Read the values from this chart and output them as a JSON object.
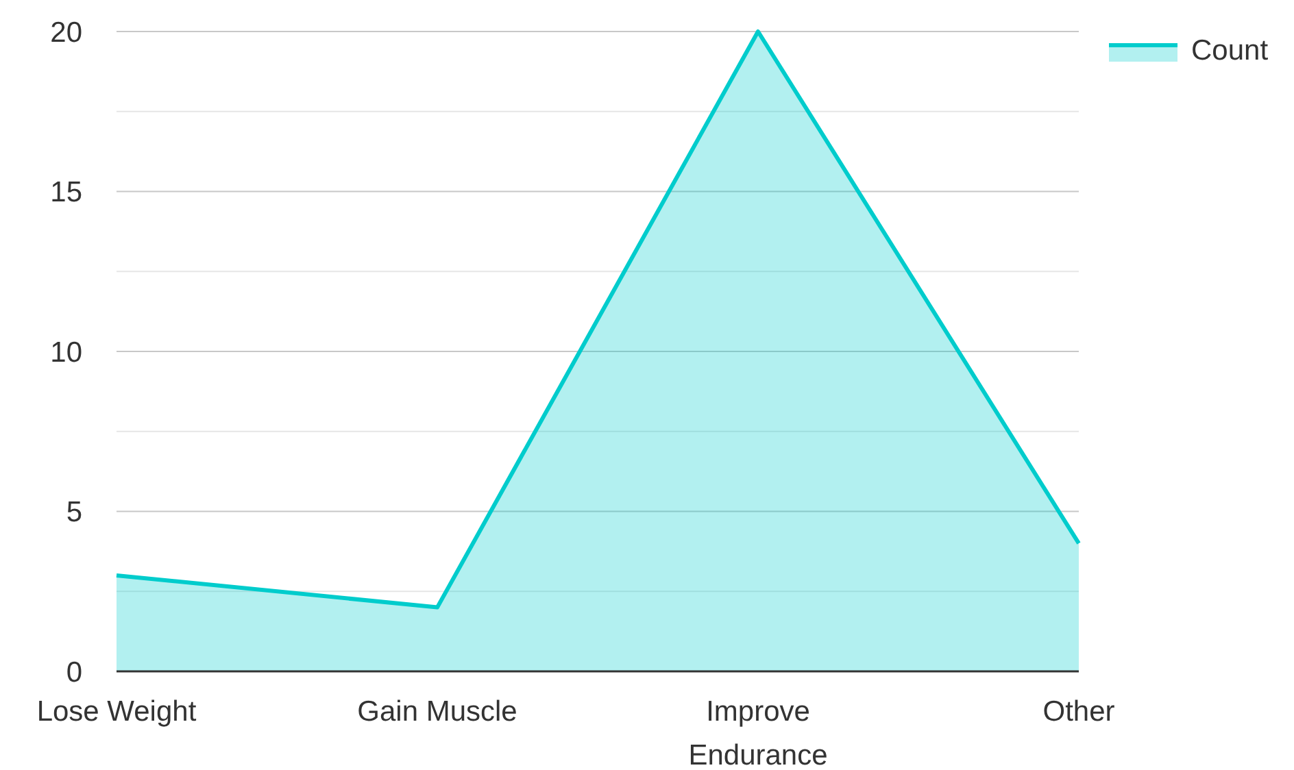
{
  "chart_data": {
    "type": "area",
    "categories": [
      "Lose Weight",
      "Gain Muscle",
      "Improve Endurance",
      "Other"
    ],
    "series": [
      {
        "name": "Count",
        "color": "#00cccc",
        "values": [
          3,
          2,
          20,
          4
        ]
      }
    ],
    "ylim": [
      0,
      20
    ],
    "yticks": [
      0,
      {
        "value": 2.5,
        "label": null
      },
      5,
      {
        "value": 7.5,
        "label": null
      },
      10,
      {
        "value": 12.5,
        "label": null
      },
      15,
      {
        "value": 17.5,
        "label": null
      },
      20
    ],
    "grid": "y",
    "legend": "top right"
  }
}
